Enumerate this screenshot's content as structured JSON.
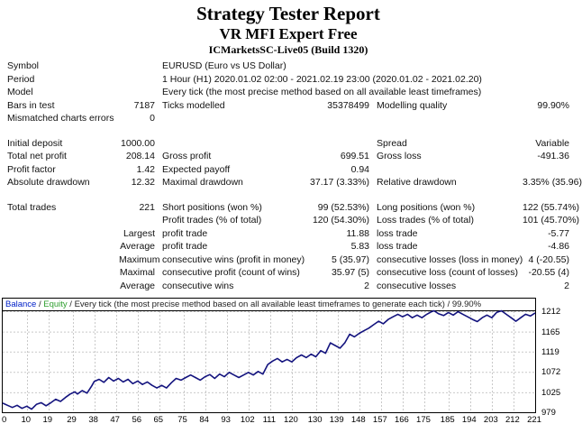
{
  "header": {
    "title": "Strategy Tester Report",
    "expert": "VR MFI Expert Free",
    "server": "ICMarketsSC-Live05 (Build 1320)"
  },
  "report": {
    "sections": [
      {
        "rows": [
          {
            "cells": [
              "Symbol",
              "",
              "EURUSD (Euro vs US Dollar)"
            ],
            "span": true
          },
          {
            "cells": [
              "Period",
              "",
              "1 Hour (H1) 2020.01.02 02:00 - 2021.02.19 23:00 (2020.01.02 - 2021.02.20)"
            ],
            "span": true
          },
          {
            "cells": [
              "Model",
              "",
              "Every tick (the most precise method based on all available least timeframes)"
            ],
            "span": true
          },
          {
            "cells": [
              "Bars in test",
              "7187",
              "Ticks modelled",
              "35378499",
              "Modelling quality",
              "99.90%"
            ]
          },
          {
            "cells": [
              "Mismatched charts errors",
              "0",
              "",
              "",
              "",
              ""
            ]
          }
        ]
      },
      {
        "rows": [
          {
            "cells": [
              "Initial deposit",
              "1000.00",
              "",
              "",
              "Spread",
              "Variable"
            ]
          },
          {
            "cells": [
              "Total net profit",
              "208.14",
              "Gross profit",
              "699.51",
              "Gross loss",
              "-491.36"
            ]
          },
          {
            "cells": [
              "Profit factor",
              "1.42",
              "Expected payoff",
              "0.94",
              "",
              ""
            ]
          },
          {
            "cells": [
              "Absolute drawdown",
              "12.32",
              "Maximal drawdown",
              "37.17 (3.33%)",
              "Relative drawdown",
              "3.35% (35.96)"
            ]
          }
        ]
      },
      {
        "rows": [
          {
            "cells": [
              "Total trades",
              "221",
              "Short positions (won %)",
              "99 (52.53%)",
              "Long positions (won %)",
              "122 (55.74%)"
            ]
          },
          {
            "cells": [
              "",
              "",
              "Profit trades (% of total)",
              "120 (54.30%)",
              "Loss trades (% of total)",
              "101 (45.70%)"
            ]
          },
          {
            "cells": [
              "",
              "Largest",
              "profit trade",
              "11.88",
              "loss trade",
              "-5.77"
            ]
          },
          {
            "cells": [
              "",
              "Average",
              "profit trade",
              "5.83",
              "loss trade",
              "-4.86"
            ]
          },
          {
            "cells": [
              "",
              "Maximum",
              "consecutive wins (profit in money)",
              "5 (35.97)",
              "consecutive losses (loss in money)",
              "4 (-20.55)"
            ]
          },
          {
            "cells": [
              "",
              "Maximal",
              "consecutive profit (count of wins)",
              "35.97 (5)",
              "consecutive loss (count of losses)",
              "-20.55 (4)"
            ]
          },
          {
            "cells": [
              "",
              "Average",
              "consecutive wins",
              "2",
              "consecutive losses",
              "2"
            ]
          }
        ]
      }
    ]
  },
  "chart_data": {
    "type": "line",
    "legend": {
      "balance_label": "Balance",
      "equity_label": "Equity",
      "separator": " / ",
      "description": "Every tick (the most precise method based on all available least timeframes to generate each tick)",
      "quality": "99.90%"
    },
    "xlabel": "",
    "ylabel": "",
    "xlim": [
      0,
      221
    ],
    "ylim": [
      979,
      1212
    ],
    "x_ticks": [
      0,
      10,
      19,
      29,
      38,
      47,
      56,
      65,
      75,
      84,
      93,
      102,
      111,
      120,
      130,
      139,
      148,
      157,
      166,
      175,
      185,
      194,
      203,
      212,
      221
    ],
    "y_ticks": [
      1212,
      1165,
      1119,
      1072,
      1025,
      979
    ],
    "grid": true,
    "legend_position": "top-left",
    "colors": {
      "balance_legend": "#0020c8",
      "equity_legend": "#2e9e2e",
      "line": "#13137e",
      "grid": "#c9c9c9"
    },
    "series": [
      {
        "name": "Balance",
        "points": [
          [
            0,
            1000
          ],
          [
            2,
            995
          ],
          [
            4,
            990
          ],
          [
            6,
            995
          ],
          [
            8,
            988
          ],
          [
            10,
            993
          ],
          [
            12,
            986
          ],
          [
            14,
            997
          ],
          [
            16,
            1001
          ],
          [
            18,
            994
          ],
          [
            20,
            1001
          ],
          [
            22,
            1009
          ],
          [
            24,
            1004
          ],
          [
            26,
            1013
          ],
          [
            28,
            1021
          ],
          [
            30,
            1026
          ],
          [
            31,
            1021
          ],
          [
            33,
            1029
          ],
          [
            35,
            1023
          ],
          [
            37,
            1040
          ],
          [
            38,
            1050
          ],
          [
            40,
            1055
          ],
          [
            42,
            1048
          ],
          [
            44,
            1059
          ],
          [
            46,
            1051
          ],
          [
            48,
            1057
          ],
          [
            50,
            1049
          ],
          [
            52,
            1055
          ],
          [
            54,
            1045
          ],
          [
            56,
            1051
          ],
          [
            58,
            1043
          ],
          [
            60,
            1049
          ],
          [
            62,
            1041
          ],
          [
            64,
            1035
          ],
          [
            66,
            1041
          ],
          [
            68,
            1035
          ],
          [
            70,
            1047
          ],
          [
            72,
            1057
          ],
          [
            74,
            1053
          ],
          [
            76,
            1059
          ],
          [
            78,
            1065
          ],
          [
            80,
            1059
          ],
          [
            82,
            1053
          ],
          [
            84,
            1061
          ],
          [
            86,
            1066
          ],
          [
            88,
            1057
          ],
          [
            90,
            1067
          ],
          [
            92,
            1061
          ],
          [
            94,
            1071
          ],
          [
            96,
            1065
          ],
          [
            98,
            1059
          ],
          [
            100,
            1065
          ],
          [
            102,
            1071
          ],
          [
            104,
            1065
          ],
          [
            106,
            1073
          ],
          [
            108,
            1067
          ],
          [
            110,
            1089
          ],
          [
            112,
            1097
          ],
          [
            114,
            1103
          ],
          [
            116,
            1095
          ],
          [
            118,
            1101
          ],
          [
            120,
            1095
          ],
          [
            122,
            1105
          ],
          [
            124,
            1111
          ],
          [
            126,
            1105
          ],
          [
            128,
            1113
          ],
          [
            130,
            1107
          ],
          [
            132,
            1121
          ],
          [
            134,
            1115
          ],
          [
            136,
            1139
          ],
          [
            138,
            1133
          ],
          [
            140,
            1127
          ],
          [
            142,
            1139
          ],
          [
            144,
            1159
          ],
          [
            146,
            1153
          ],
          [
            148,
            1161
          ],
          [
            150,
            1167
          ],
          [
            152,
            1173
          ],
          [
            154,
            1181
          ],
          [
            156,
            1189
          ],
          [
            158,
            1183
          ],
          [
            160,
            1193
          ],
          [
            162,
            1199
          ],
          [
            164,
            1205
          ],
          [
            166,
            1199
          ],
          [
            168,
            1205
          ],
          [
            170,
            1197
          ],
          [
            172,
            1203
          ],
          [
            174,
            1197
          ],
          [
            176,
            1205
          ],
          [
            178,
            1211
          ],
          [
            179,
            1213
          ],
          [
            181,
            1206
          ],
          [
            183,
            1202
          ],
          [
            185,
            1209
          ],
          [
            187,
            1203
          ],
          [
            189,
            1211
          ],
          [
            191,
            1205
          ],
          [
            193,
            1199
          ],
          [
            195,
            1193
          ],
          [
            197,
            1188
          ],
          [
            199,
            1197
          ],
          [
            201,
            1203
          ],
          [
            203,
            1197
          ],
          [
            205,
            1209
          ],
          [
            207,
            1213
          ],
          [
            209,
            1205
          ],
          [
            211,
            1197
          ],
          [
            213,
            1189
          ],
          [
            215,
            1197
          ],
          [
            217,
            1205
          ],
          [
            219,
            1201
          ],
          [
            221,
            1208
          ]
        ]
      }
    ]
  }
}
